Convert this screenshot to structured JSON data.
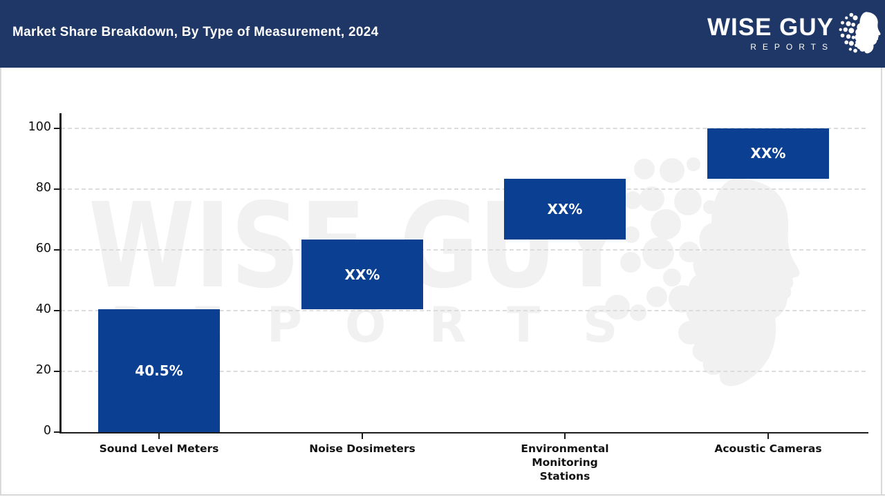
{
  "header": {
    "title": "Market Share Breakdown, By Type of Measurement, 2024",
    "logo": {
      "line1": "WISE GUY",
      "line2": "REPORTS"
    }
  },
  "watermark": {
    "line1": "WISE GUY",
    "line2": "REPORTS"
  },
  "colors": {
    "header_bg": "#1f3766",
    "bar_fill": "#0b3f91",
    "bar_label_text": "#ffffff",
    "axis": "#1c1c1c",
    "gridline": "#dcdcdc",
    "tick_text": "#111111",
    "watermark": "#f1f1f1"
  },
  "chart_data": {
    "type": "bar",
    "subtype": "floating-waterfall",
    "title": "Market Share Breakdown, By Type of Measurement, 2024",
    "categories": [
      "Sound Level Meters",
      "Noise Dosimeters",
      "Environmental Monitoring Stations",
      "Acoustic Cameras"
    ],
    "categories_display": [
      "Sound Level Meters",
      "Noise Dosimeters",
      "Environmental\nMonitoring\nStations",
      "Acoustic Cameras"
    ],
    "bars": [
      {
        "label": "40.5%",
        "start": 0,
        "end": 40.5,
        "span": 40.5
      },
      {
        "label": "XX%",
        "start": 40.5,
        "end": 63.3,
        "span": 22.8
      },
      {
        "label": "XX%",
        "start": 63.3,
        "end": 83.5,
        "span": 20.2
      },
      {
        "label": "XX%",
        "start": 83.5,
        "end": 100,
        "span": 16.5
      }
    ],
    "yticks": [
      "0",
      "20",
      "40",
      "60",
      "80",
      "100"
    ],
    "ytick_values": [
      0,
      20,
      40,
      60,
      80,
      100
    ],
    "ylim": [
      0,
      105
    ],
    "xlabel": "",
    "ylabel": "",
    "grid": "dashed-horizontal",
    "legend": "none"
  }
}
